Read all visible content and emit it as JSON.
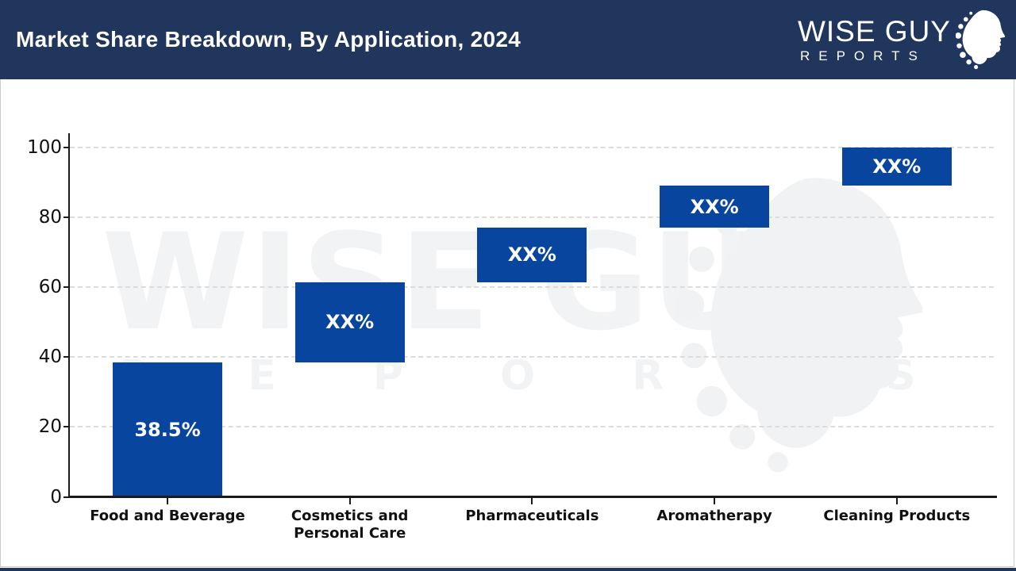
{
  "header": {
    "title": "Market Share Breakdown, By Application, 2024",
    "brand_name": "WISE GUY",
    "brand_sub": "REPORTS",
    "bg_color": "#21365d",
    "text_color": "#ffffff"
  },
  "watermark": {
    "text": "WISE GUY",
    "sub": "R E P O R T S"
  },
  "footer": {
    "bar_color": "#21365d"
  },
  "chart_data": {
    "type": "bar",
    "variant": "waterfall-floating-bars",
    "title": "Market Share Breakdown, By Application, 2024",
    "xlabel": "",
    "ylabel": "",
    "ylim": [
      0,
      105
    ],
    "yticks": [
      0,
      20,
      40,
      60,
      80,
      100
    ],
    "grid": "horizontal-dashed",
    "legend": "none",
    "bar_color": "#07459e",
    "bar_label_color": "#ffffff",
    "categories": [
      "Food and Beverage",
      "Cosmetics and\nPersonal Care",
      "Pharmaceuticals",
      "Aromatherapy",
      "Cleaning Products"
    ],
    "segments": [
      {
        "category": "Food and Beverage",
        "start": 0,
        "end": 38.5,
        "label": "38.5%"
      },
      {
        "category": "Cosmetics and\nPersonal Care",
        "start": 38.5,
        "end": 61.5,
        "label": "XX%"
      },
      {
        "category": "Pharmaceuticals",
        "start": 61.5,
        "end": 77,
        "label": "XX%"
      },
      {
        "category": "Aromatherapy",
        "start": 77,
        "end": 89,
        "label": "XX%"
      },
      {
        "category": "Cleaning Products",
        "start": 89,
        "end": 100,
        "label": "XX%"
      }
    ]
  }
}
